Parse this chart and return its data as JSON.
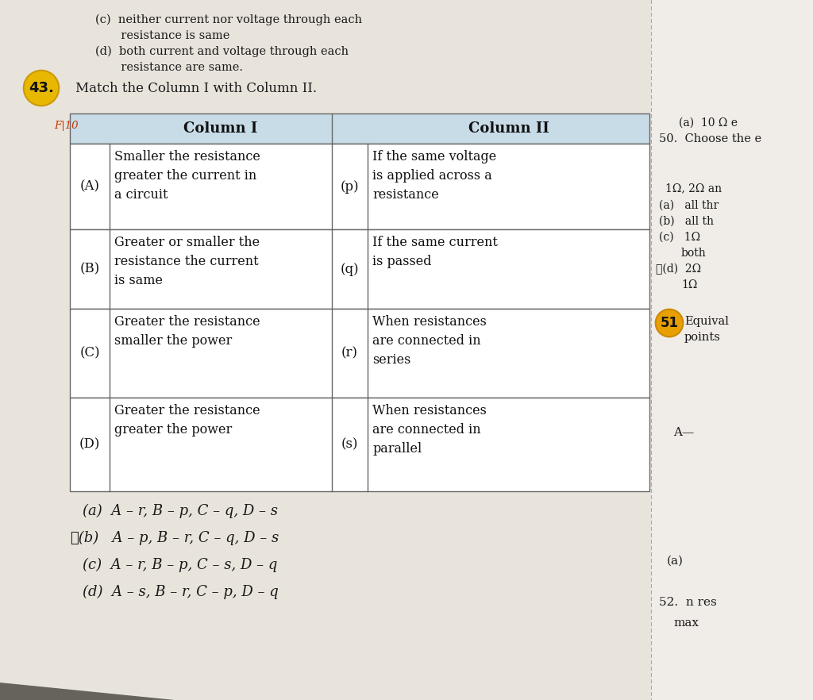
{
  "background_color": "#e8e4dc",
  "table_bg": "#ffffff",
  "header_bg": "#c8dce8",
  "col1_header": "Column I",
  "col2_header": "Column II",
  "rows": [
    {
      "label": "(A)",
      "col1": "Smaller the resistance\ngreater the current in\na circuit",
      "match_label": "(p)",
      "col2": "If the same voltage\nis applied across a\nresistance"
    },
    {
      "label": "(B)",
      "col1": "Greater or smaller the\nresistance the current\nis same",
      "match_label": "(q)",
      "col2": "If the same current\nis passed"
    },
    {
      "label": "(C)",
      "col1": "Greater the resistance\nsmaller the power",
      "match_label": "(r)",
      "col2": "When resistances\nare connected in\nseries"
    },
    {
      "label": "(D)",
      "col1": "Greater the resistance\ngreater the power",
      "match_label": "(s)",
      "col2": "When resistances\nare connected in\nparallel"
    }
  ],
  "options": [
    [
      "(a)",
      "A – r, B – p, C – q, D – s",
      false
    ],
    [
      "(b)",
      "A – p, B – r, C – q, D – s",
      true
    ],
    [
      "(c)",
      "A – r, B – p, C – s, D – q",
      false
    ],
    [
      "(d)",
      "A – s, B – r, C – p, D – q",
      false
    ]
  ],
  "preamble": [
    "(c)  neither current nor voltage through each",
    "       resistance is same",
    "(d)  both current and voltage through each",
    "       resistance are same."
  ],
  "q_number": "43.",
  "q_title": "Match the Column I with Column II.",
  "q_number_color": "#e8b800",
  "q51_color": "#e8a000",
  "right_col": [
    [
      "(a)",
      "10 Ω e",
      148
    ],
    [
      "50.",
      "Choose the e",
      172
    ]
  ],
  "right_col2": [
    [
      "",
      "1Ω, 2Ω an",
      242
    ],
    [
      "(a)",
      "all thr",
      265
    ],
    [
      "(b)",
      "all th",
      288
    ],
    [
      "(c)",
      "1Ω",
      311
    ],
    [
      "",
      "both",
      330
    ],
    [
      "✓(d)",
      "2Ω",
      352
    ],
    [
      "",
      "1Ω",
      372
    ]
  ],
  "filo_text": "F|10",
  "filo_color": "#cc3300"
}
